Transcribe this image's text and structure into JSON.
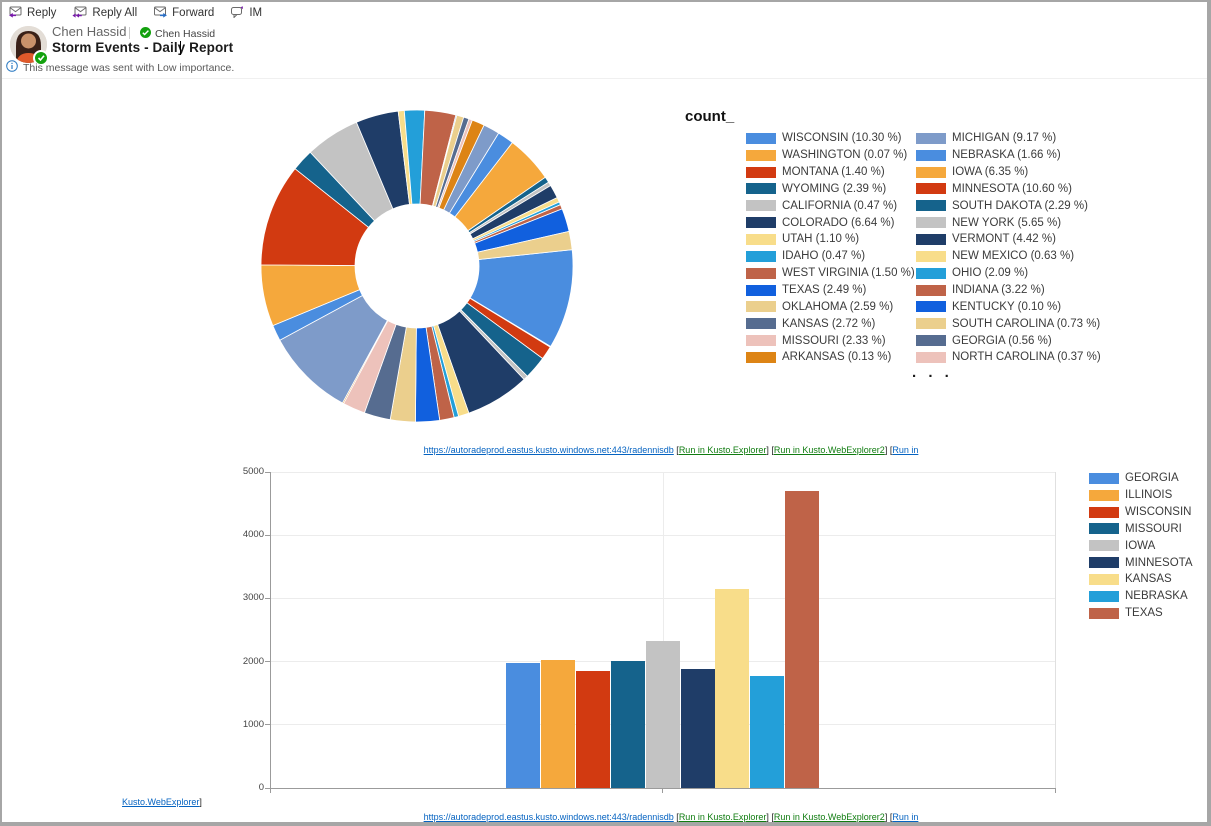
{
  "toolbar": {
    "reply": "Reply",
    "reply_all": "Reply All",
    "forward": "Forward",
    "im": "IM"
  },
  "header": {
    "sender": "Chen Hassid",
    "presence": "Chen Hassid",
    "subject": "Storm Events - Daily Report",
    "importance_note": "This message was sent with Low importance."
  },
  "palette": {
    "cornflower": "#4a8ddf",
    "amber": "#f5a83c",
    "redorange": "#d23a11",
    "teal": "#15638c",
    "silver": "#c3c3c3",
    "navy": "#1f3d68",
    "paleyellow": "#f8dd8a",
    "cyan": "#239fd9",
    "terracotta": "#bf6348",
    "vividblue": "#1160de",
    "tan": "#ebcf8d",
    "slate": "#566c90",
    "pink": "#edc2bb",
    "darkorange": "#dd8415",
    "steelblue": "#7e9bc9"
  },
  "chart_data": [
    {
      "type": "pie",
      "variant": "donut",
      "title": "count_",
      "unit": "%",
      "legend_position": "right",
      "more_indicator": ". . .",
      "start_angle_deg": 84,
      "slices": [
        {
          "state": "WISCONSIN",
          "pct": "10.30",
          "color": "cornflower"
        },
        {
          "state": "WASHINGTON",
          "pct": "0.07",
          "color": "amber"
        },
        {
          "state": "MONTANA",
          "pct": "1.40",
          "color": "redorange"
        },
        {
          "state": "WYOMING",
          "pct": "2.39",
          "color": "teal"
        },
        {
          "state": "CALIFORNIA",
          "pct": "0.47",
          "color": "silver"
        },
        {
          "state": "COLORADO",
          "pct": "6.64",
          "color": "navy"
        },
        {
          "state": "UTAH",
          "pct": "1.10",
          "color": "paleyellow"
        },
        {
          "state": "IDAHO",
          "pct": "0.47",
          "color": "cyan"
        },
        {
          "state": "WEST VIRGINIA",
          "pct": "1.50",
          "color": "terracotta"
        },
        {
          "state": "TEXAS",
          "pct": "2.49",
          "color": "vividblue"
        },
        {
          "state": "OKLAHOMA",
          "pct": "2.59",
          "color": "tan"
        },
        {
          "state": "KANSAS",
          "pct": "2.72",
          "color": "slate"
        },
        {
          "state": "MISSOURI",
          "pct": "2.33",
          "color": "pink"
        },
        {
          "state": "ARKANSAS",
          "pct": "0.13",
          "color": "darkorange"
        },
        {
          "state": "MICHIGAN",
          "pct": "9.17",
          "color": "steelblue"
        },
        {
          "state": "NEBRASKA",
          "pct": "1.66",
          "color": "cornflower"
        },
        {
          "state": "IOWA",
          "pct": "6.35",
          "color": "amber"
        },
        {
          "state": "MINNESOTA",
          "pct": "10.60",
          "color": "redorange"
        },
        {
          "state": "SOUTH DAKOTA",
          "pct": "2.29",
          "color": "teal"
        },
        {
          "state": "NEW YORK",
          "pct": "5.65",
          "color": "silver"
        },
        {
          "state": "VERMONT",
          "pct": "4.42",
          "color": "navy"
        },
        {
          "state": "NEW MEXICO",
          "pct": "0.63",
          "color": "paleyellow"
        },
        {
          "state": "OHIO",
          "pct": "2.09",
          "color": "cyan"
        },
        {
          "state": "INDIANA",
          "pct": "3.22",
          "color": "terracotta"
        },
        {
          "state": "KENTUCKY",
          "pct": "0.10",
          "color": "vividblue"
        },
        {
          "state": "SOUTH CAROLINA",
          "pct": "0.73",
          "color": "tan"
        },
        {
          "state": "GEORGIA",
          "pct": "0.56",
          "color": "slate"
        },
        {
          "state": "NORTH CAROLINA",
          "pct": "0.37",
          "color": "pink"
        }
      ],
      "unlabeled_slices": [
        {
          "pct": "1.30",
          "color": "darkorange"
        },
        {
          "pct": "1.70",
          "color": "steelblue"
        },
        {
          "pct": "1.70",
          "color": "cornflower"
        },
        {
          "pct": "4.90",
          "color": "amber"
        },
        {
          "pct": "0.60",
          "color": "teal"
        },
        {
          "pct": "0.40",
          "color": "silver"
        },
        {
          "pct": "1.40",
          "color": "navy"
        },
        {
          "pct": "0.50",
          "color": "paleyellow"
        },
        {
          "pct": "0.30",
          "color": "cyan"
        },
        {
          "pct": "0.46",
          "color": "terracotta"
        },
        {
          "pct": "2.40",
          "color": "vividblue"
        },
        {
          "pct": "1.90",
          "color": "tan"
        }
      ]
    },
    {
      "type": "bar",
      "title": "",
      "categories": [
        "GEORGIA",
        "ILLINOIS",
        "WISCONSIN",
        "MISSOURI",
        "IOWA",
        "MINNESOTA",
        "KANSAS",
        "NEBRASKA",
        "TEXAS"
      ],
      "values": [
        1980,
        2030,
        1850,
        2010,
        2330,
        1880,
        3150,
        1770,
        4700
      ],
      "colors": [
        "cornflower",
        "amber",
        "redorange",
        "teal",
        "silver",
        "navy",
        "paleyellow",
        "cyan",
        "terracotta"
      ],
      "ylim": [
        0,
        5000
      ],
      "yticks": [
        0,
        1000,
        2000,
        3000,
        4000,
        5000
      ],
      "grid": true,
      "legend_position": "right"
    }
  ],
  "links": {
    "url": "https://autoradeprod.eastus.kusto.windows.net:443/radennisdb",
    "run_segments": [
      {
        "label": "Run in Kusto.Explorer",
        "color": "green",
        "closed": true
      },
      {
        "label": "Run in Kusto.WebExplorer2",
        "color": "green",
        "closed": true
      },
      {
        "label": "Run in",
        "color": "blue",
        "closed": false
      }
    ],
    "wrapped": {
      "label": "Kusto.WebExplorer",
      "suffix": "]"
    }
  },
  "colors": {
    "link_blue": "#0563c1",
    "link_green": "#107c10",
    "axis_text": "#444444",
    "legend_text": "#3b3b3b"
  }
}
